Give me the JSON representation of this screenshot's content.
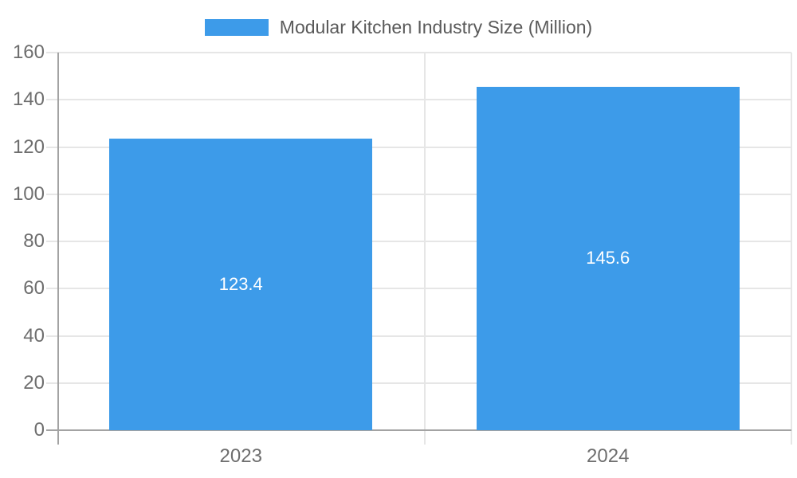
{
  "legend": {
    "label": "Modular Kitchen Industry Size (Million)"
  },
  "colors": {
    "bar": "#3d9be9",
    "grid": "#e6e6e6",
    "tick": "#e6e6e6",
    "axis": "#a3a3a3",
    "axis_label": "#6e6e6e",
    "legend_text": "#5a5a5a",
    "value_label": "#ffffff",
    "background": "#ffffff"
  },
  "chart_data": {
    "type": "bar",
    "categories": [
      "2023",
      "2024"
    ],
    "series": [
      {
        "name": "Modular Kitchen Industry Size (Million)",
        "values": [
          123.4,
          145.6
        ]
      }
    ],
    "value_labels": [
      "123.4",
      "145.6"
    ],
    "title": "",
    "xlabel": "",
    "ylabel": "",
    "ylim": [
      0,
      160
    ],
    "yticks": [
      0,
      20,
      40,
      60,
      80,
      100,
      120,
      140,
      160
    ],
    "grid": true,
    "legend_position": "top"
  }
}
